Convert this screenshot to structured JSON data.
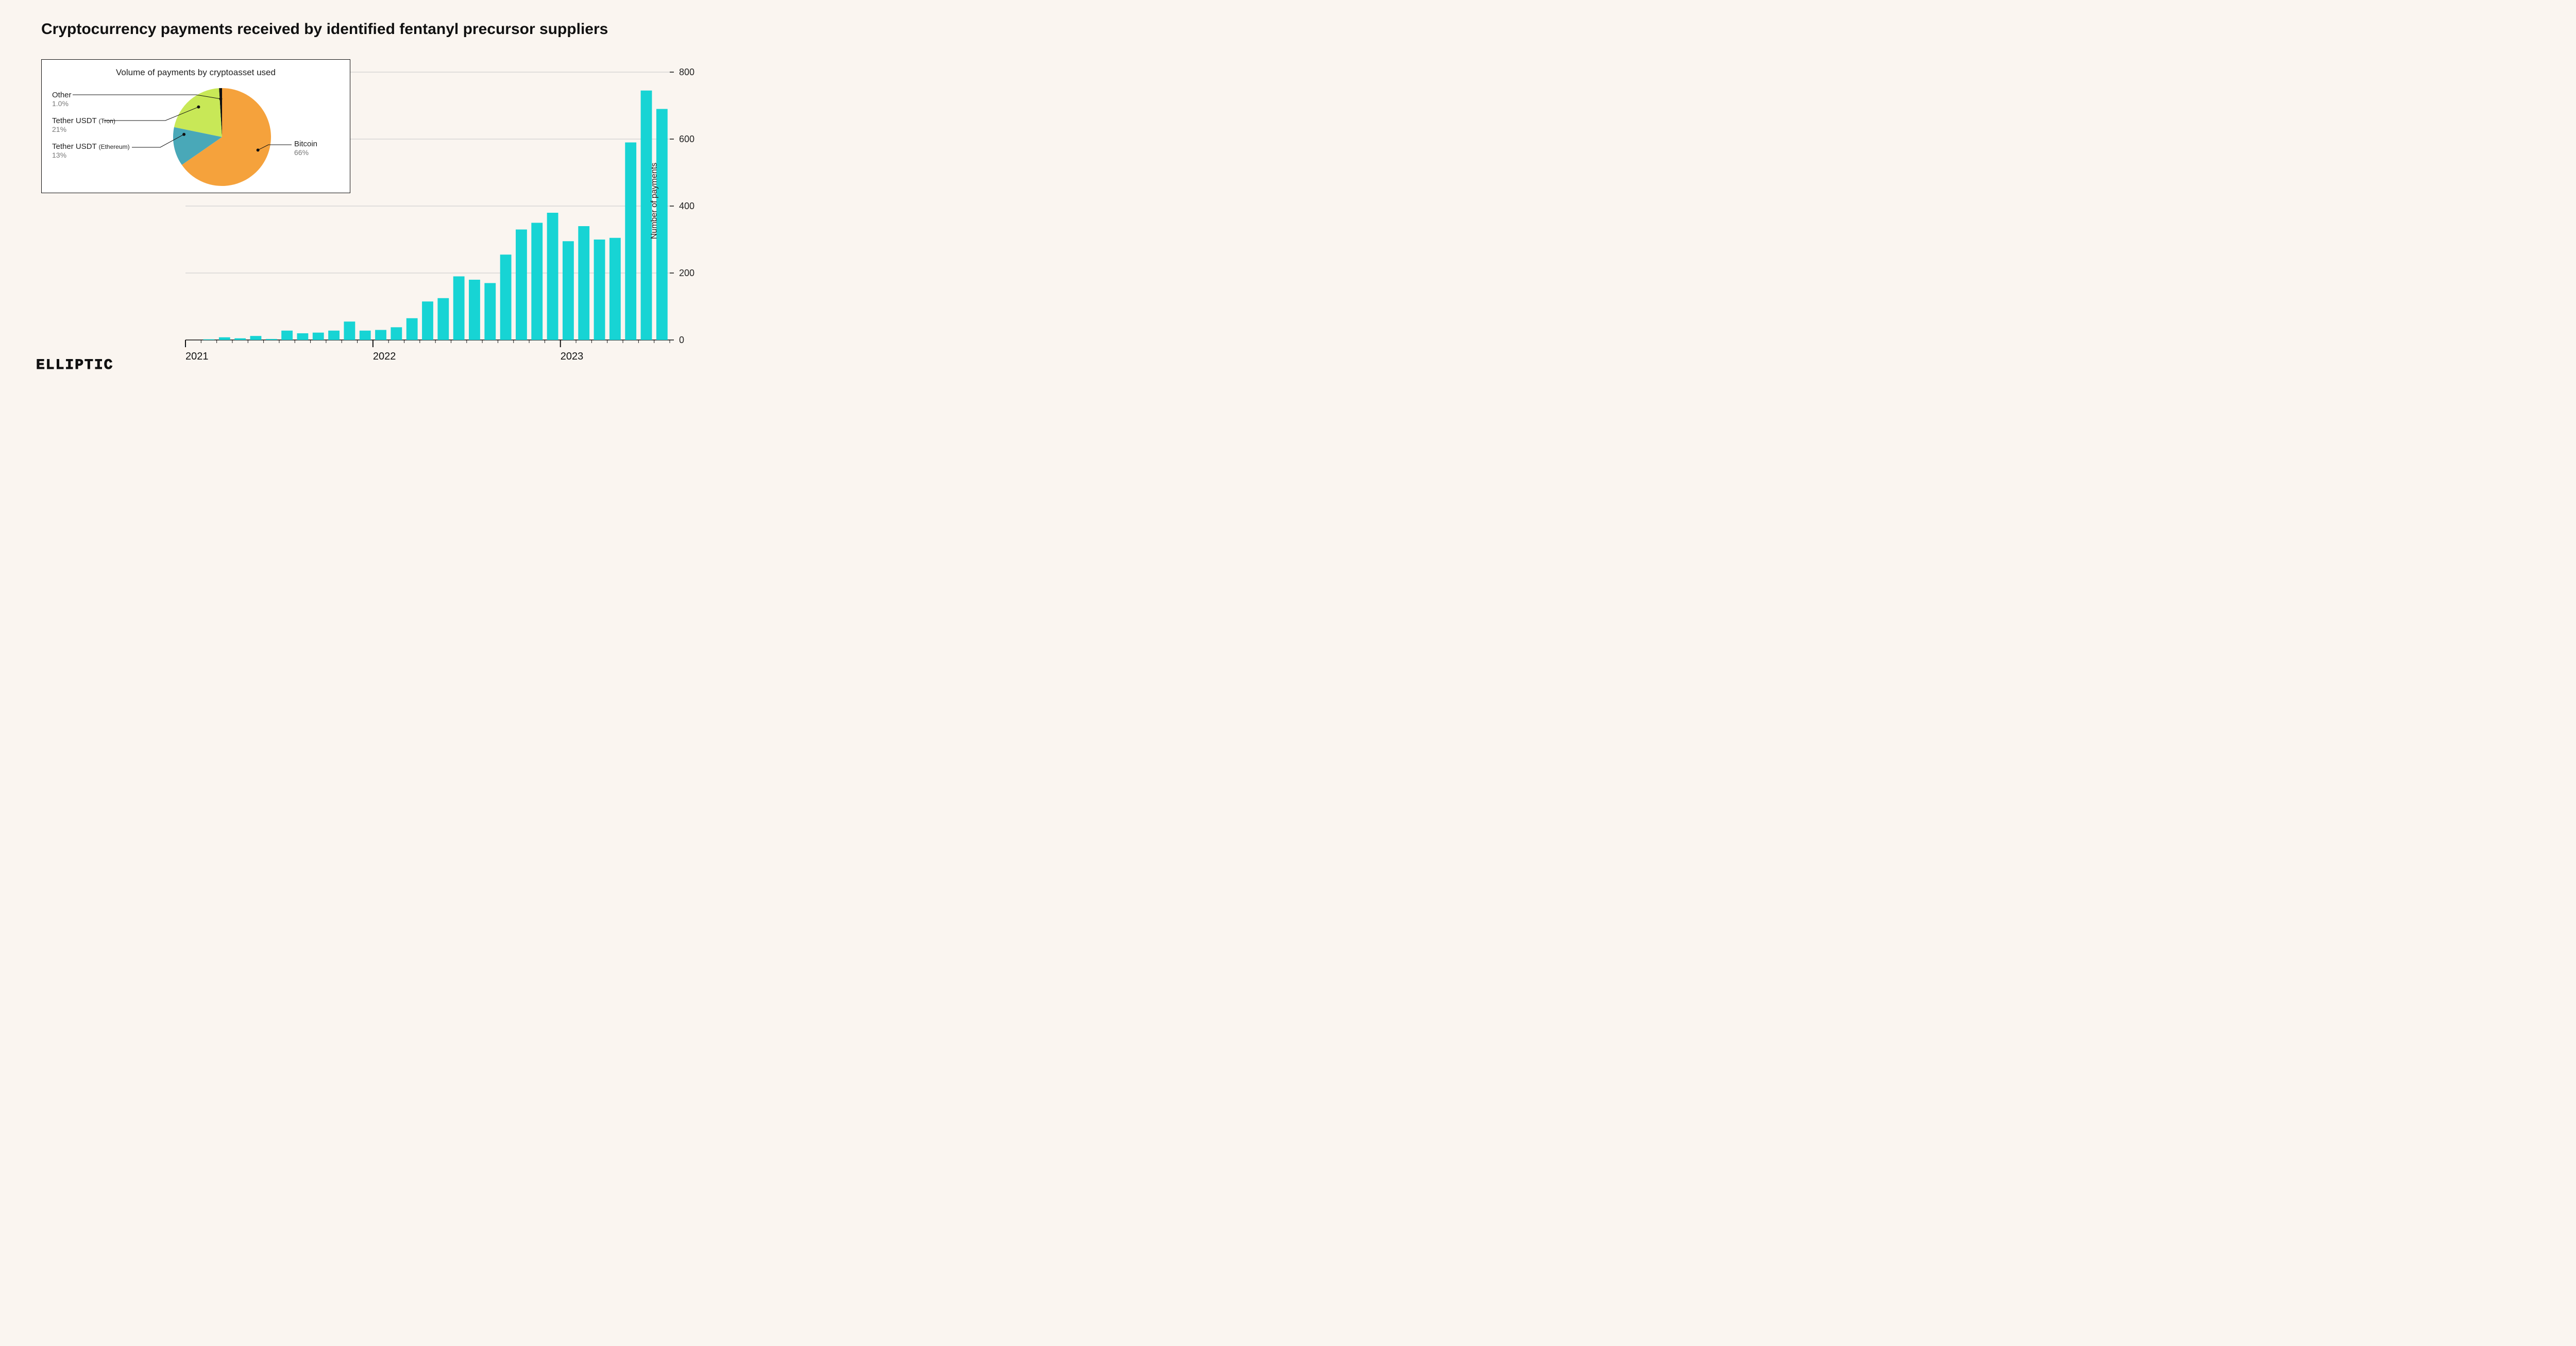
{
  "title": "Cryptocurrency payments received by identified fentanyl precursor suppliers",
  "logo_text": "ELLIPTIC",
  "background_color": "#faf5f0",
  "bar_chart": {
    "type": "bar",
    "values": [
      0,
      2,
      8,
      5,
      12,
      3,
      28,
      20,
      22,
      28,
      55,
      28,
      30,
      38,
      65,
      115,
      125,
      190,
      180,
      170,
      255,
      330,
      350,
      380,
      295,
      340,
      300,
      305,
      590,
      745,
      690
    ],
    "bar_color": "#17d4d4",
    "y_axis": {
      "min": 0,
      "max": 800,
      "tick_step": 200,
      "ticks": [
        0,
        200,
        400,
        600,
        800
      ],
      "label": "Number of payments",
      "label_fontsize": 16,
      "tick_fontsize": 18,
      "tick_color": "#222222"
    },
    "x_axis": {
      "year_marks": [
        {
          "label": "2021",
          "position_index": 0
        },
        {
          "label": "2022",
          "position_index": 12
        },
        {
          "label": "2023",
          "position_index": 24
        }
      ],
      "tick_fontsize": 20,
      "tick_color": "#111111"
    },
    "grid_color": "#c7c7c7",
    "axis_color": "#111111",
    "plot_background": "#faf5f0"
  },
  "pie_chart": {
    "type": "pie",
    "title": "Volume of payments by cryptoasset used",
    "title_fontsize": 17,
    "background_color": "#ffffff",
    "border_color": "#111111",
    "slices": [
      {
        "label": "Bitcoin",
        "value": 66,
        "pct_text": "66%",
        "color": "#f5a23c"
      },
      {
        "label": "Tether USDT",
        "sublabel": "(Tron)",
        "value": 21,
        "pct_text": "21%",
        "color": "#c8e857"
      },
      {
        "label": "Tether USDT",
        "sublabel": "(Ethereum)",
        "value": 13,
        "pct_text": "13%",
        "color": "#49a8b8"
      },
      {
        "label": "Other",
        "value": 1,
        "pct_text": "1.0%",
        "color": "#111111"
      }
    ]
  }
}
